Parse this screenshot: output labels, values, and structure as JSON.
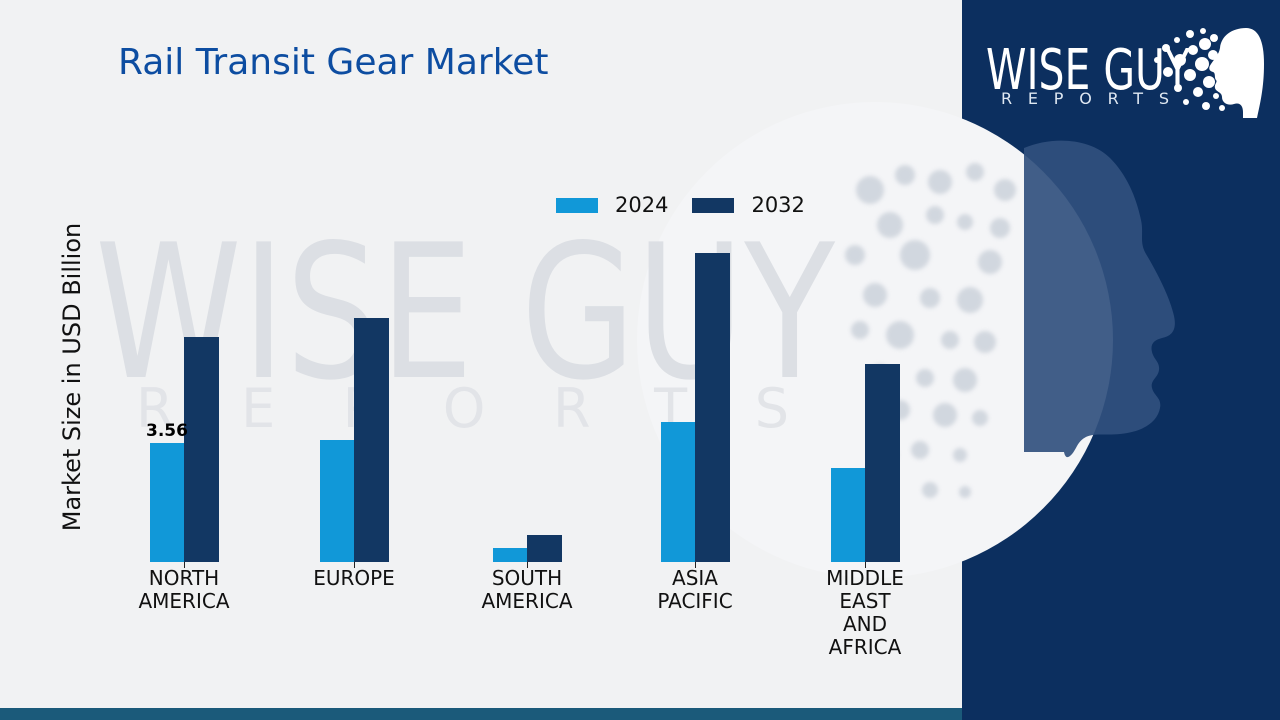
{
  "page": {
    "background_color": "#f1f2f3",
    "side_panel_color": "#0c2f5f",
    "bottom_bar_color": "#1b5a7a"
  },
  "header": {
    "title": "Rail Transit Gear Market",
    "title_color": "#0d4da1"
  },
  "logo": {
    "brand": "WISE GUY",
    "subtext": "REPORTS"
  },
  "watermark": {
    "line1": "WISE GUY",
    "line2": "REPORTS"
  },
  "chart_data": {
    "type": "bar",
    "title": "Rail Transit Gear Market",
    "xlabel": "",
    "ylabel": "Market Size in USD Billion",
    "categories": [
      "NORTH AMERICA",
      "EUROPE",
      "SOUTH AMERICA",
      "ASIA PACIFIC",
      "MIDDLE EAST AND AFRICA"
    ],
    "series": [
      {
        "name": "2024",
        "color": "#1198d8",
        "values": [
          3.56,
          3.65,
          0.42,
          4.19,
          2.81
        ]
      },
      {
        "name": "2032",
        "color": "#123763",
        "values": [
          6.73,
          7.3,
          0.81,
          9.24,
          5.92
        ]
      }
    ],
    "annotations": [
      {
        "series": "2024",
        "category": "NORTH AMERICA",
        "text": "3.56"
      }
    ],
    "legend_position": "top-center",
    "grid": false,
    "axis_line": false,
    "ylim": [
      0,
      10
    ]
  }
}
